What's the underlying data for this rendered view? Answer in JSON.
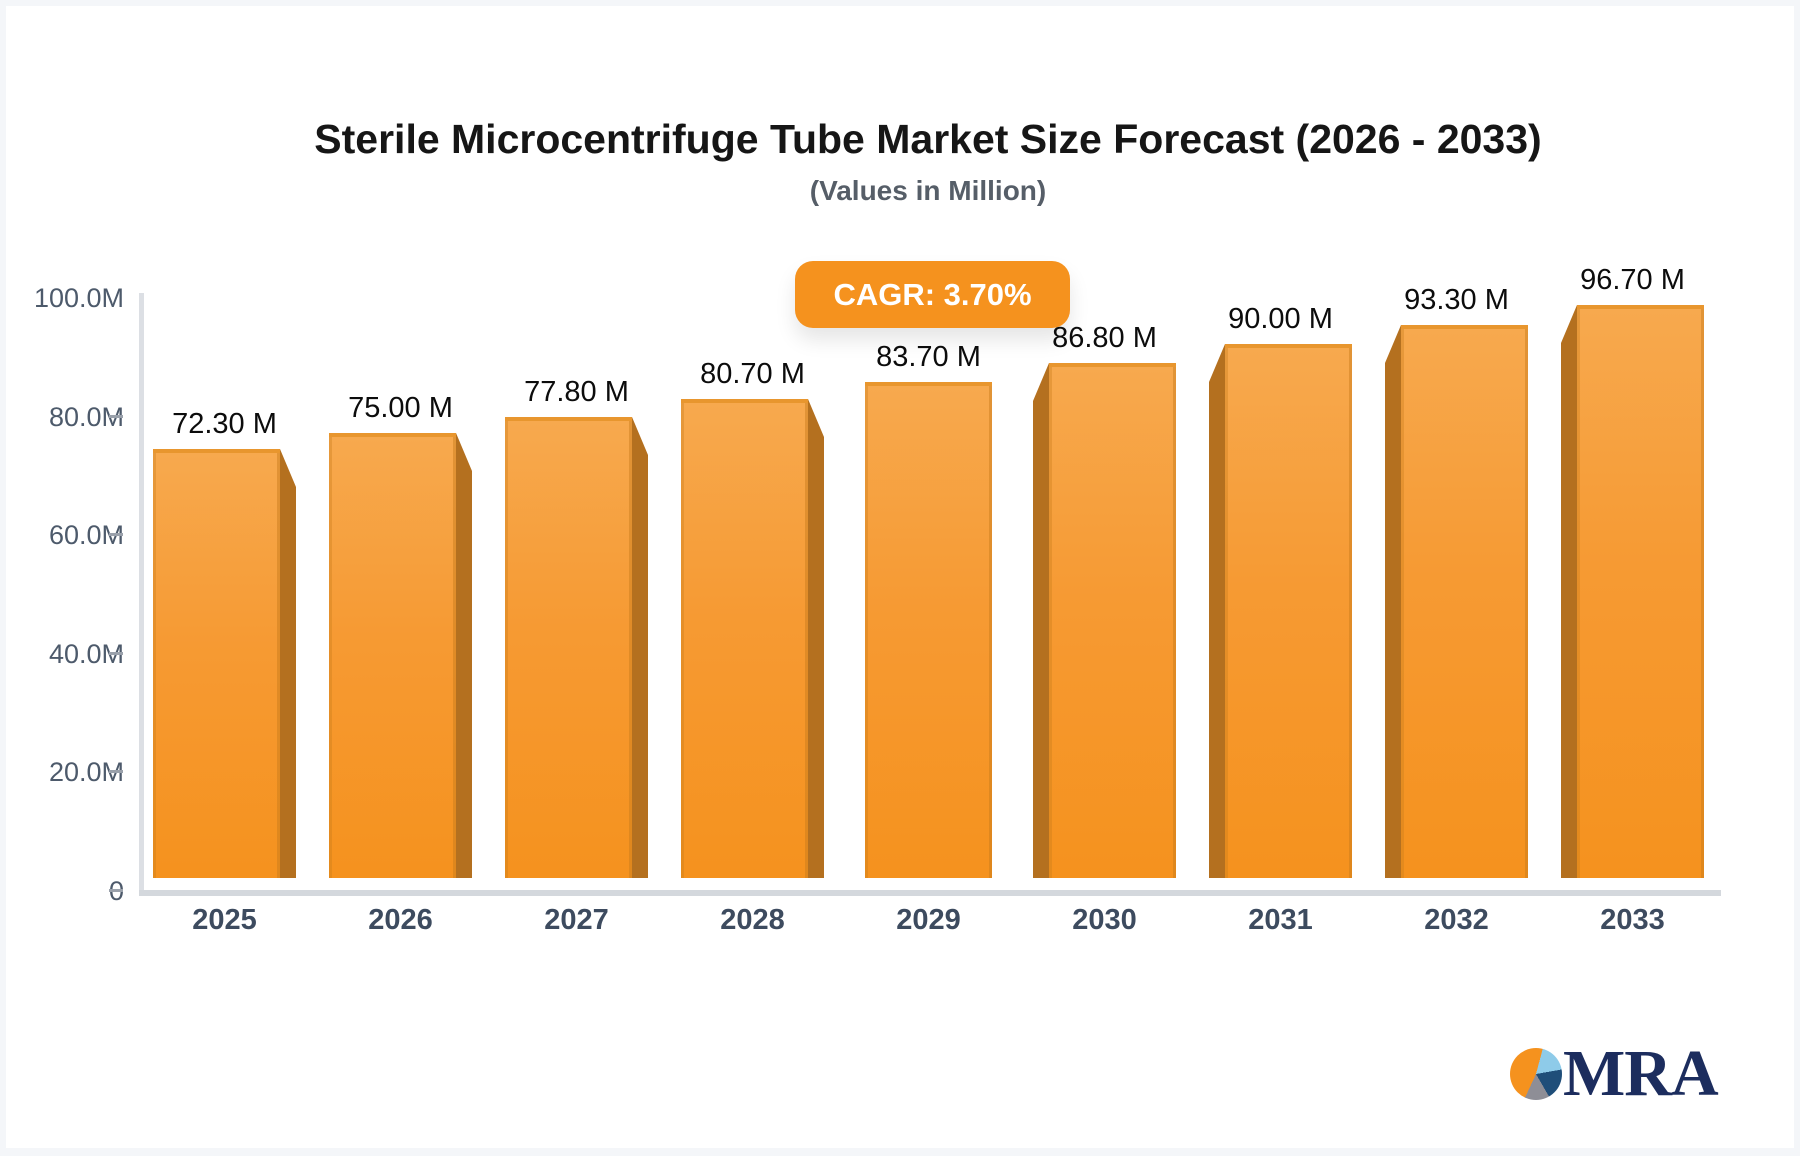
{
  "page": {
    "title": "Sterile Microcentrifuge Tube Market Size Forecast (2026 - 2033)",
    "subtitle": "(Values in Million)",
    "cagr_badge": "CAGR: 3.70%"
  },
  "chart_data": {
    "type": "bar",
    "title": "Sterile Microcentrifuge Tube Market Size Forecast (2026 - 2033)",
    "subtitle": "(Values in Million)",
    "annotation": "CAGR: 3.70%",
    "categories": [
      "2025",
      "2026",
      "2027",
      "2028",
      "2029",
      "2030",
      "2031",
      "2032",
      "2033"
    ],
    "values": [
      72.3,
      75.0,
      77.8,
      80.7,
      83.7,
      86.8,
      90.0,
      93.3,
      96.7
    ],
    "value_labels": [
      "72.30 M",
      "75.00 M",
      "77.80 M",
      "80.70 M",
      "83.70 M",
      "86.80 M",
      "90.00 M",
      "93.30 M",
      "96.70 M"
    ],
    "xlabel": "",
    "ylabel": "",
    "ylim": [
      0,
      100
    ],
    "ytick_values": [
      100,
      80,
      60,
      40,
      20,
      0
    ],
    "ytick_labels": [
      "100.0M",
      "80.0M",
      "60.0M",
      "40.0M",
      "20.0M",
      "0"
    ],
    "grid": false,
    "legend": false,
    "colors": {
      "bar_front_top": "#f7a94e",
      "bar_front_bottom": "#f5921e",
      "bar_side": "#b4701f",
      "badge_background": "#f5921e",
      "axis_line": "#d4d8dd",
      "tick_text": "#4d5a6b",
      "category_text": "#3d4b5f"
    }
  },
  "logo": {
    "text": "MRA",
    "text_color": "#1c2d5e",
    "pie_colors": {
      "orange": "#f5921e",
      "light_blue": "#8ecbe9",
      "navy": "#1f4e79",
      "gray": "#8e8e96"
    }
  }
}
